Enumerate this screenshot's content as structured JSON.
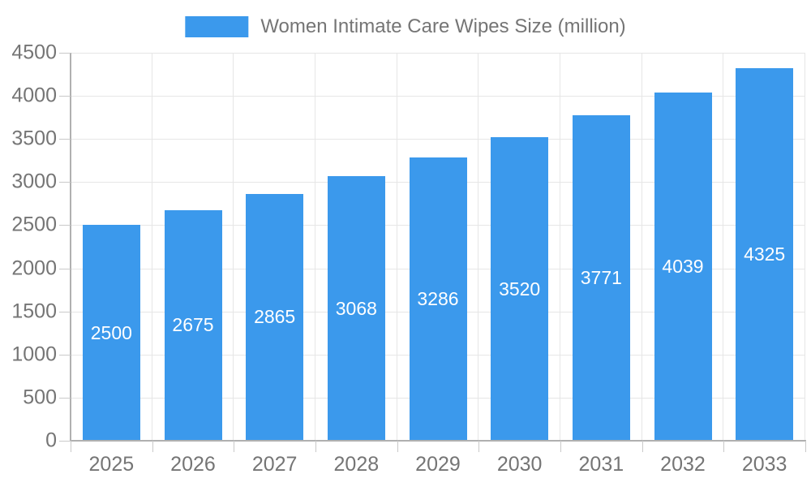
{
  "chart_data": {
    "type": "bar",
    "title": "Women Intimate Care Wipes Size (million)",
    "legend": {
      "label": "Women Intimate Care Wipes Size (million)",
      "position": "top"
    },
    "categories": [
      "2025",
      "2026",
      "2027",
      "2028",
      "2029",
      "2030",
      "2031",
      "2032",
      "2033"
    ],
    "values": [
      2500,
      2675,
      2865,
      3068,
      3286,
      3520,
      3771,
      4039,
      4325
    ],
    "value_labels": [
      "2500",
      "2675",
      "2865",
      "3068",
      "3286",
      "3520",
      "3771",
      "4039",
      "4325"
    ],
    "xlabel": "",
    "ylabel": "",
    "ylim": [
      0,
      4500
    ],
    "ytick_step": 500,
    "ytick_labels": [
      "0",
      "500",
      "1000",
      "1500",
      "2000",
      "2500",
      "3000",
      "3500",
      "4000",
      "4500"
    ],
    "grid": "horizontal and vertical light gray gridlines",
    "colors": {
      "bar": "#3B99EC",
      "grid": "#E6E6E6",
      "axis": "#B0B0B0",
      "tick": "#C9C9C9",
      "axis_text": "#757575",
      "value_label": "#FFFFFF",
      "background": "#FFFFFF"
    }
  }
}
